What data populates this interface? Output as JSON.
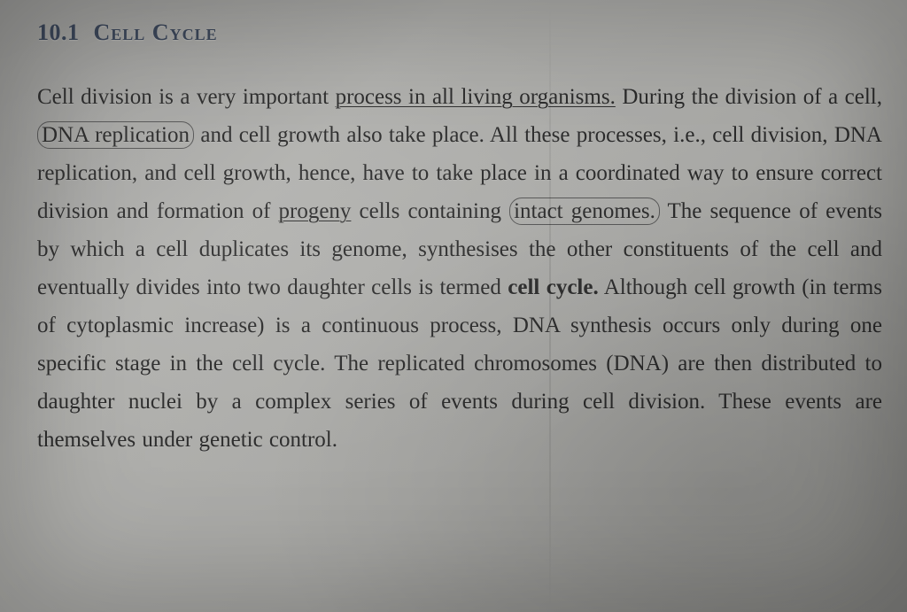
{
  "heading": {
    "number": "10.1",
    "title": "Cell Cycle",
    "color": "#3a4558",
    "fontsize": 26
  },
  "paragraph": {
    "fontsize": 25,
    "line_height": 1.72,
    "color": "#2a2a2a",
    "segments": {
      "s1": "Cell division is a very important ",
      "s2_underlined": "process in all living organisms.",
      "s3": " During the division of a cell, ",
      "s4_circled": "DNA replication",
      "s5": " and cell growth also take place. All these processes, i.e., cell division, DNA replication, and cell growth, hence, have to take place in a coordinated way to ensure correct division and formation of ",
      "s6_underlined": "progeny",
      "s7": " cells containing ",
      "s8_circled": "intact genomes.",
      "s9": " The sequence of events by which a cell duplicates its genome, synthesises the other constituents of the cell and eventually divides into two daughter cells is termed ",
      "s10_bold": "cell cycle.",
      "s11": " Although cell growth (in terms of cytoplasmic increase) is a continuous process, DNA synthesis occurs only during one specific stage in the cell cycle. The replicated chromosomes (DNA) are then distributed to daughter nuclei by a complex series of events during cell division. These events are themselves under genetic control."
    }
  },
  "background": {
    "gradient_start": "#9a9a98",
    "gradient_mid": "#b0b0ad",
    "gradient_end": "#8a8a87"
  }
}
